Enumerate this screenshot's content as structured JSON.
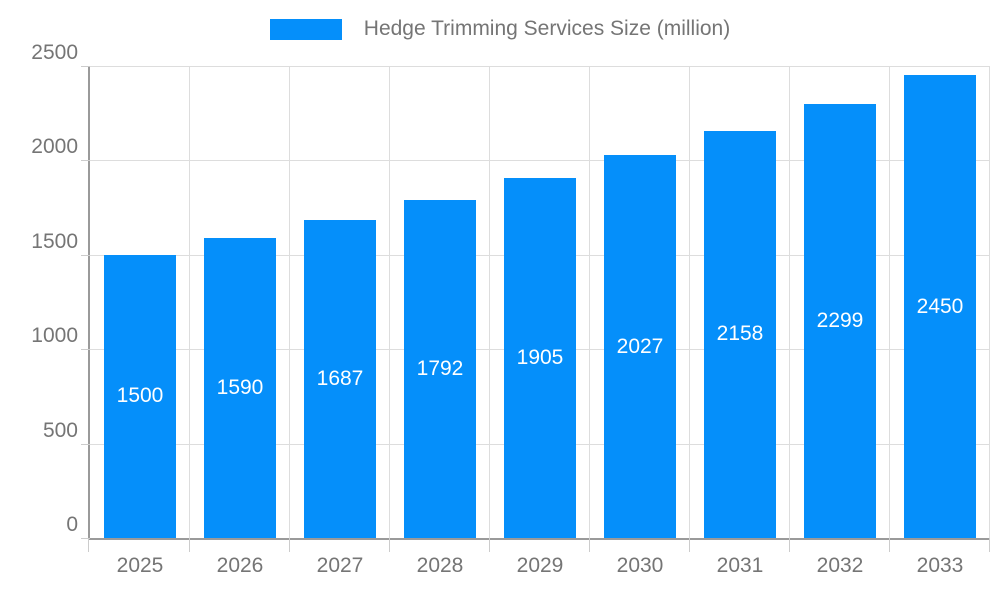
{
  "legend": {
    "label": "Hedge Trimming Services Size (million)",
    "swatch_color": "#058FFA"
  },
  "chart_data": {
    "type": "bar",
    "title": "Hedge Trimming Services Size (million)",
    "categories": [
      "2025",
      "2026",
      "2027",
      "2028",
      "2029",
      "2030",
      "2031",
      "2032",
      "2033"
    ],
    "values": [
      1500,
      1590,
      1687,
      1792,
      1905,
      2027,
      2158,
      2299,
      2450
    ],
    "value_labels": [
      "1500",
      "1590",
      "1687",
      "1792",
      "1905",
      "2027",
      "2158",
      "2299",
      "2450"
    ],
    "xlabel": "",
    "ylabel": "",
    "ylim": [
      0,
      2500
    ],
    "yticks": [
      0,
      500,
      1000,
      1500,
      2000,
      2500
    ],
    "ytick_labels": [
      "0",
      "500",
      "1000",
      "1500",
      "2000",
      "2500"
    ],
    "grid": true,
    "legend_position": "top",
    "bar_width_fraction": 0.72,
    "colors": {
      "bar": "#058FFA",
      "value_label": "#ffffff",
      "axis": "#9a9a9a",
      "grid": "#dddddd",
      "tick": "#cccccc",
      "text": "#757575",
      "background": "#ffffff"
    }
  }
}
